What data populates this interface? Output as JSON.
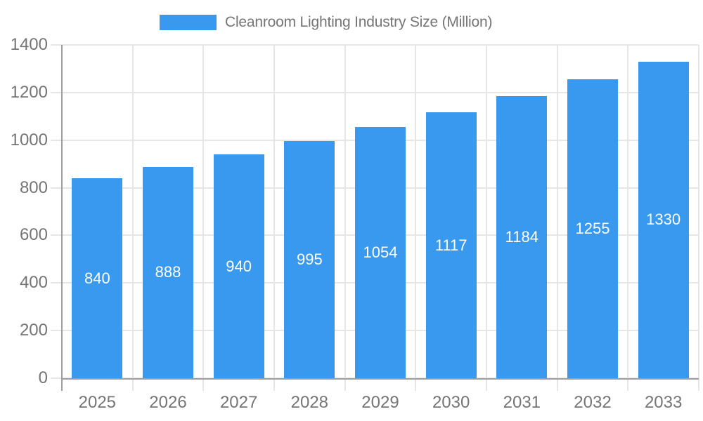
{
  "chart_data": {
    "type": "bar",
    "title": "Cleanroom Lighting Industry Size (Million)",
    "legend_position": "top",
    "categories": [
      "2025",
      "2026",
      "2027",
      "2028",
      "2029",
      "2030",
      "2031",
      "2032",
      "2033"
    ],
    "series": [
      {
        "name": "Cleanroom Lighting Industry Size (Million)",
        "values": [
          840,
          888,
          940,
          995,
          1054,
          1117,
          1184,
          1255,
          1330
        ]
      }
    ],
    "xlabel": "",
    "ylabel": "",
    "ylim": [
      0,
      1400
    ],
    "y_ticks": [
      0,
      200,
      400,
      600,
      800,
      1000,
      1200,
      1400
    ],
    "grid": true,
    "data_labels_shown": true,
    "colors": {
      "bar": "#3999EE",
      "bar_label": "#FFFFFF",
      "axis_text": "#757575",
      "grid_line": "#E6E6E6",
      "axis_line": "#9E9E9E",
      "background": "#FFFFFF"
    }
  }
}
